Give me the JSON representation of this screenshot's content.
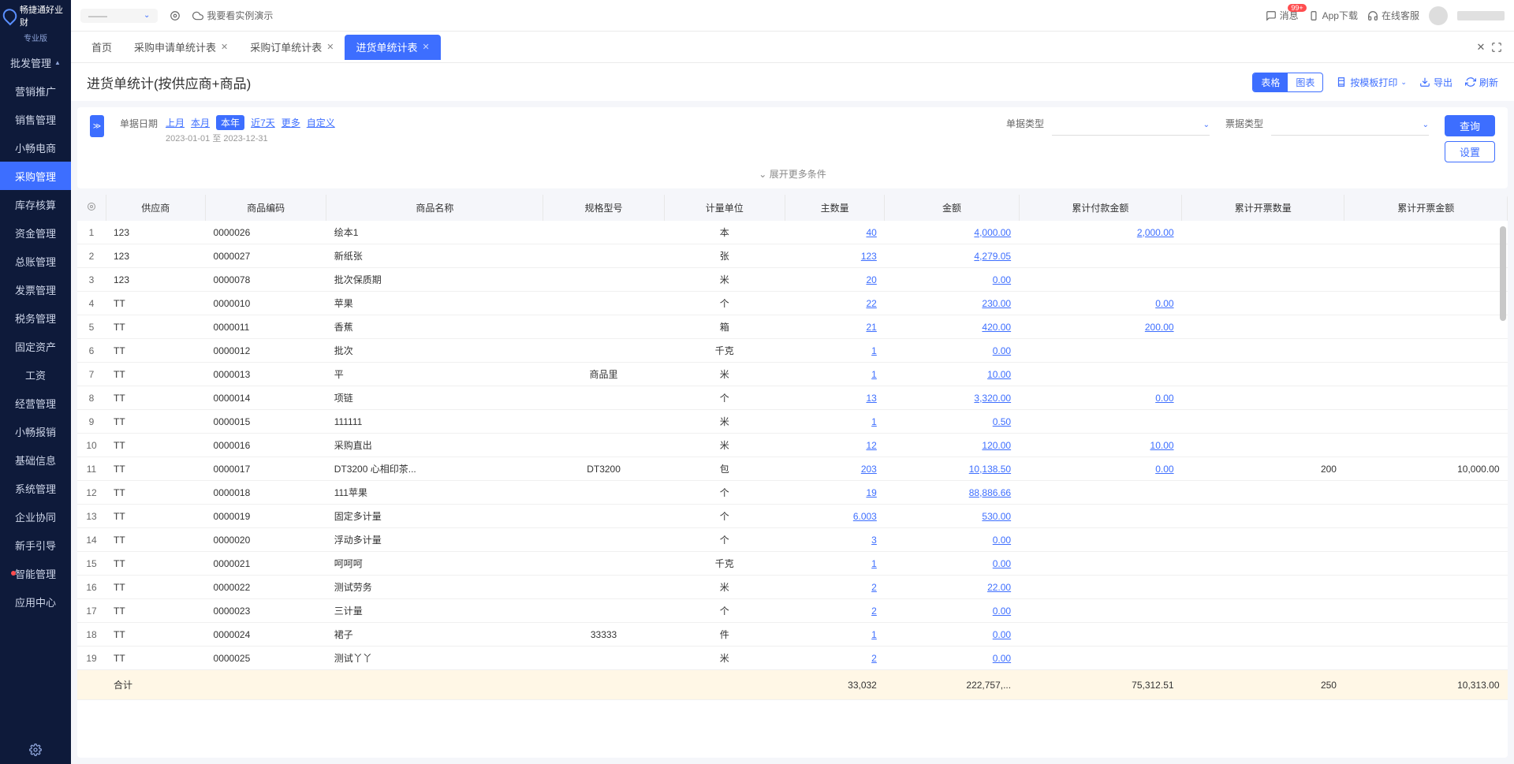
{
  "brand": {
    "name": "畅捷通好业财",
    "edition": "专业版"
  },
  "topbar": {
    "org": "——",
    "demo": "我要看实例演示",
    "msg": "消息",
    "msg_badge": "99+",
    "download": "App下载",
    "support": "在线客服"
  },
  "sidebar_items": [
    {
      "label": "批发管理",
      "expanded": true
    },
    {
      "label": "营销推广"
    },
    {
      "label": "销售管理"
    },
    {
      "label": "小畅电商"
    },
    {
      "label": "采购管理",
      "active": true
    },
    {
      "label": "库存核算"
    },
    {
      "label": "资金管理"
    },
    {
      "label": "总账管理"
    },
    {
      "label": "发票管理"
    },
    {
      "label": "税务管理"
    },
    {
      "label": "固定资产"
    },
    {
      "label": "工资"
    },
    {
      "label": "经营管理"
    },
    {
      "label": "小畅报销"
    },
    {
      "label": "基础信息"
    },
    {
      "label": "系统管理"
    },
    {
      "label": "企业协同"
    },
    {
      "label": "新手引导"
    },
    {
      "label": "智能管理",
      "dot": true
    },
    {
      "label": "应用中心"
    }
  ],
  "tabs": [
    {
      "label": "首页",
      "closable": false
    },
    {
      "label": "采购申请单统计表",
      "closable": true
    },
    {
      "label": "采购订单统计表",
      "closable": true
    },
    {
      "label": "进货单统计表",
      "closable": true,
      "active": true
    }
  ],
  "page_title": "进货单统计(按供应商+商品)",
  "view_toggle": {
    "table": "表格",
    "chart": "图表"
  },
  "actions": {
    "print": "按模板打印",
    "export": "导出",
    "refresh": "刷新"
  },
  "filters": {
    "date_label": "单据日期",
    "quick": [
      "上月",
      "本月",
      "本年",
      "近7天",
      "更多",
      "自定义"
    ],
    "quick_active": "本年",
    "range": "2023-01-01 至 2023-12-31",
    "type1": "单据类型",
    "type2": "票据类型",
    "query": "查询",
    "settings": "设置",
    "more": "展开更多条件"
  },
  "columns": [
    "",
    "供应商",
    "商品编码",
    "商品名称",
    "规格型号",
    "计量单位",
    "主数量",
    "金额",
    "累计付款金额",
    "累计开票数量",
    "累计开票金额"
  ],
  "rows": [
    {
      "idx": 1,
      "sup": "123",
      "code": "0000026",
      "name": "绘本1",
      "spec": "",
      "unit": "本",
      "qty": "40",
      "amt": "4,000.00",
      "paid": "2,000.00",
      "inv_qty": "",
      "inv_amt": ""
    },
    {
      "idx": 2,
      "sup": "123",
      "code": "0000027",
      "name": "新纸张",
      "spec": "",
      "unit": "张",
      "qty": "123",
      "amt": "4,279.05",
      "paid": "",
      "inv_qty": "",
      "inv_amt": ""
    },
    {
      "idx": 3,
      "sup": "123",
      "code": "0000078",
      "name": "批次保质期",
      "spec": "",
      "unit": "米",
      "qty": "20",
      "amt": "0.00",
      "paid": "",
      "inv_qty": "",
      "inv_amt": ""
    },
    {
      "idx": 4,
      "sup": "TT",
      "code": "0000010",
      "name": "苹果",
      "spec": "",
      "unit": "个",
      "qty": "22",
      "amt": "230.00",
      "paid": "0.00",
      "inv_qty": "",
      "inv_amt": ""
    },
    {
      "idx": 5,
      "sup": "TT",
      "code": "0000011",
      "name": "香蕉",
      "spec": "",
      "unit": "箱",
      "qty": "21",
      "amt": "420.00",
      "paid": "200.00",
      "inv_qty": "",
      "inv_amt": ""
    },
    {
      "idx": 6,
      "sup": "TT",
      "code": "0000012",
      "name": "批次",
      "spec": "",
      "unit": "千克",
      "qty": "1",
      "amt": "0.00",
      "paid": "",
      "inv_qty": "",
      "inv_amt": ""
    },
    {
      "idx": 7,
      "sup": "TT",
      "code": "0000013",
      "name": "平",
      "spec": "商品里",
      "unit": "米",
      "qty": "1",
      "amt": "10.00",
      "paid": "",
      "inv_qty": "",
      "inv_amt": ""
    },
    {
      "idx": 8,
      "sup": "TT",
      "code": "0000014",
      "name": "项链",
      "spec": "",
      "unit": "个",
      "qty": "13",
      "amt": "3,320.00",
      "paid": "0.00",
      "inv_qty": "",
      "inv_amt": ""
    },
    {
      "idx": 9,
      "sup": "TT",
      "code": "0000015",
      "name": "111111",
      "spec": "",
      "unit": "米",
      "qty": "1",
      "amt": "0.50",
      "paid": "",
      "inv_qty": "",
      "inv_amt": ""
    },
    {
      "idx": 10,
      "sup": "TT",
      "code": "0000016",
      "name": "采购直出",
      "spec": "",
      "unit": "米",
      "qty": "12",
      "amt": "120.00",
      "paid": "10.00",
      "inv_qty": "",
      "inv_amt": ""
    },
    {
      "idx": 11,
      "sup": "TT",
      "code": "0000017",
      "name": "DT3200 心相印茶...",
      "spec": "DT3200",
      "unit": "包",
      "qty": "203",
      "amt": "10,138.50",
      "paid": "0.00",
      "inv_qty": "200",
      "inv_amt": "10,000.00"
    },
    {
      "idx": 12,
      "sup": "TT",
      "code": "0000018",
      "name": "111苹果",
      "spec": "",
      "unit": "个",
      "qty": "19",
      "amt": "88,886.66",
      "paid": "",
      "inv_qty": "",
      "inv_amt": ""
    },
    {
      "idx": 13,
      "sup": "TT",
      "code": "0000019",
      "name": "固定多计量",
      "spec": "",
      "unit": "个",
      "qty": "6.003",
      "amt": "530.00",
      "paid": "",
      "inv_qty": "",
      "inv_amt": ""
    },
    {
      "idx": 14,
      "sup": "TT",
      "code": "0000020",
      "name": "浮动多计量",
      "spec": "",
      "unit": "个",
      "qty": "3",
      "amt": "0.00",
      "paid": "",
      "inv_qty": "",
      "inv_amt": ""
    },
    {
      "idx": 15,
      "sup": "TT",
      "code": "0000021",
      "name": "呵呵呵",
      "spec": "",
      "unit": "千克",
      "qty": "1",
      "amt": "0.00",
      "paid": "",
      "inv_qty": "",
      "inv_amt": ""
    },
    {
      "idx": 16,
      "sup": "TT",
      "code": "0000022",
      "name": "测试劳务",
      "spec": "",
      "unit": "米",
      "qty": "2",
      "amt": "22.00",
      "paid": "",
      "inv_qty": "",
      "inv_amt": ""
    },
    {
      "idx": 17,
      "sup": "TT",
      "code": "0000023",
      "name": "三计量",
      "spec": "",
      "unit": "个",
      "qty": "2",
      "amt": "0.00",
      "paid": "",
      "inv_qty": "",
      "inv_amt": ""
    },
    {
      "idx": 18,
      "sup": "TT",
      "code": "0000024",
      "name": "裙子",
      "spec": "33333",
      "unit": "件",
      "qty": "1",
      "amt": "0.00",
      "paid": "",
      "inv_qty": "",
      "inv_amt": ""
    },
    {
      "idx": 19,
      "sup": "TT",
      "code": "0000025",
      "name": "测试丫丫",
      "spec": "",
      "unit": "米",
      "qty": "2",
      "amt": "0.00",
      "paid": "",
      "inv_qty": "",
      "inv_amt": ""
    }
  ],
  "total": {
    "label": "合计",
    "qty": "33,032",
    "amt": "222,757,...",
    "paid": "75,312.51",
    "inv_qty": "250",
    "inv_amt": "10,313.00"
  }
}
